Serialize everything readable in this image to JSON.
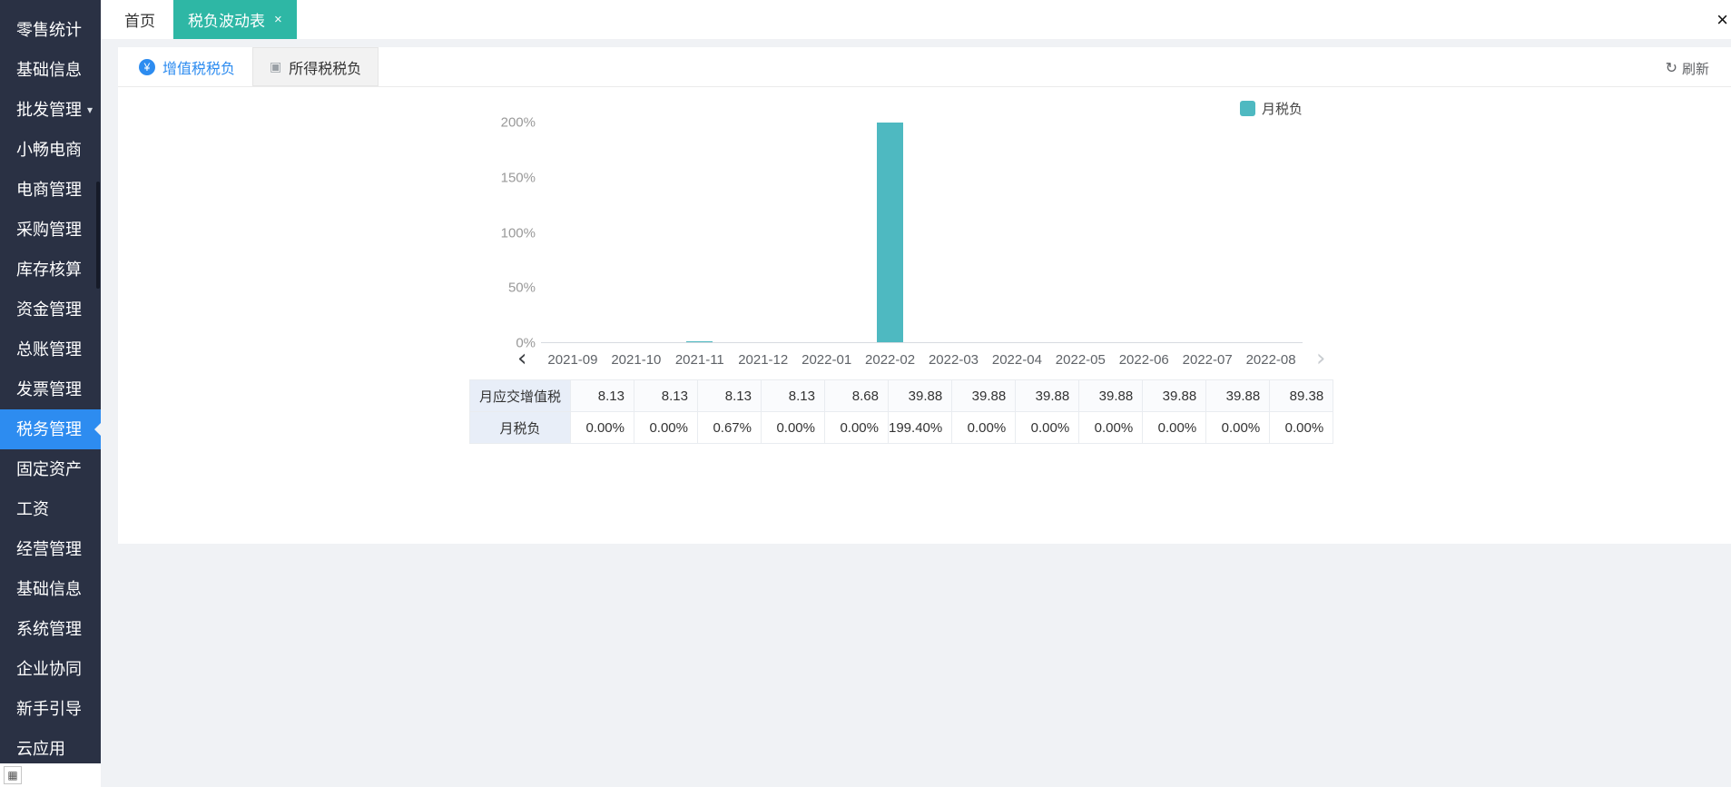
{
  "icons": {
    "close": "×",
    "refresh": "↻",
    "caret_down": "▾",
    "prev": "‹",
    "next": "›",
    "vat_tab": "¥",
    "income_tab": "▣",
    "grid": "▦"
  },
  "colors": {
    "sidebar_bg": "#2a3144",
    "active_item": "#2d8cf0",
    "tab_teal": "#2eb7a5",
    "bar_teal": "#4eb9c1",
    "page_bg": "#f0f2f5"
  },
  "sidebar": {
    "items": [
      {
        "label": "零售统计"
      },
      {
        "label": "基础信息"
      },
      {
        "label": "批发管理",
        "caret": true
      },
      {
        "label": "小畅电商"
      },
      {
        "label": "电商管理"
      },
      {
        "label": "采购管理"
      },
      {
        "label": "库存核算"
      },
      {
        "label": "资金管理"
      },
      {
        "label": "总账管理"
      },
      {
        "label": "发票管理"
      },
      {
        "label": "税务管理",
        "active": true
      },
      {
        "label": "固定资产"
      },
      {
        "label": "工资"
      },
      {
        "label": "经营管理"
      },
      {
        "label": "基础信息"
      },
      {
        "label": "系统管理"
      },
      {
        "label": "企业协同"
      },
      {
        "label": "新手引导"
      },
      {
        "label": "云应用"
      }
    ]
  },
  "tabbar": {
    "home_tab": "首页",
    "active_tab": "税负波动表"
  },
  "panel": {
    "tabs": [
      {
        "label": "增值税税负",
        "active": true
      },
      {
        "label": "所得税税负",
        "active": false
      }
    ],
    "refresh_label": "刷新"
  },
  "chart_data": {
    "type": "bar",
    "title": "",
    "categories": [
      "2021-09",
      "2021-10",
      "2021-11",
      "2021-12",
      "2022-01",
      "2022-02",
      "2022-03",
      "2022-04",
      "2022-05",
      "2022-06",
      "2022-07",
      "2022-08"
    ],
    "series": [
      {
        "name": "月税负",
        "color": "#4eb9c1",
        "values": [
          0.0,
          0.0,
          0.67,
          0.0,
          0.0,
          199.4,
          0.0,
          0.0,
          0.0,
          0.0,
          0.0,
          0.0
        ]
      }
    ],
    "ylabel": "",
    "ylim": [
      0,
      200
    ],
    "yticks": [
      "0%",
      "50%",
      "100%",
      "150%",
      "200%"
    ],
    "legend_position": "top-right",
    "grid": false
  },
  "table": {
    "rows": [
      {
        "label": "月应交增值税",
        "values": [
          "8.13",
          "8.13",
          "8.13",
          "8.13",
          "8.68",
          "39.88",
          "39.88",
          "39.88",
          "39.88",
          "39.88",
          "39.88",
          "89.38"
        ]
      },
      {
        "label": "月税负",
        "values": [
          "0.00%",
          "0.00%",
          "0.67%",
          "0.00%",
          "0.00%",
          "199.40%",
          "0.00%",
          "0.00%",
          "0.00%",
          "0.00%",
          "0.00%",
          "0.00%"
        ]
      }
    ]
  }
}
